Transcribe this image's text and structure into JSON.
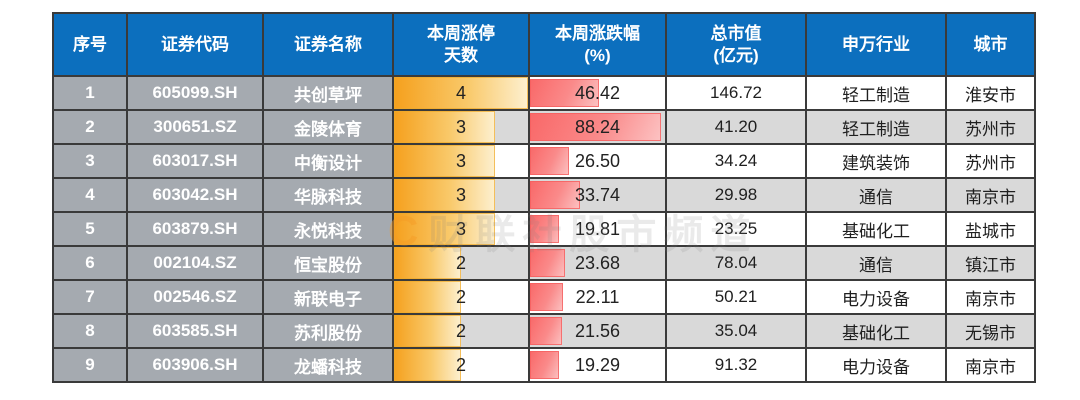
{
  "chart_data": {
    "type": "table",
    "columns": [
      {
        "key": "no",
        "line1": "序号",
        "line2": ""
      },
      {
        "key": "code",
        "line1": "证券代码",
        "line2": ""
      },
      {
        "key": "name",
        "line1": "证券名称",
        "line2": ""
      },
      {
        "key": "limit_days",
        "line1": "本周涨停",
        "line2": "天数"
      },
      {
        "key": "change_pct",
        "line1": "本周涨跌幅",
        "line2": "(%)"
      },
      {
        "key": "market_cap",
        "line1": "总市值",
        "line2": "(亿元)"
      },
      {
        "key": "industry",
        "line1": "申万行业",
        "line2": ""
      },
      {
        "key": "city",
        "line1": "城市",
        "line2": ""
      }
    ],
    "rows": [
      {
        "no": "1",
        "code": "605099.SH",
        "name": "共创草坪",
        "limit_days": 4,
        "change_pct": "46.42",
        "market_cap": "146.72",
        "industry": "轻工制造",
        "city": "淮安市"
      },
      {
        "no": "2",
        "code": "300651.SZ",
        "name": "金陵体育",
        "limit_days": 3,
        "change_pct": "88.24",
        "market_cap": "41.20",
        "industry": "轻工制造",
        "city": "苏州市"
      },
      {
        "no": "3",
        "code": "603017.SH",
        "name": "中衡设计",
        "limit_days": 3,
        "change_pct": "26.50",
        "market_cap": "34.24",
        "industry": "建筑装饰",
        "city": "苏州市"
      },
      {
        "no": "4",
        "code": "603042.SH",
        "name": "华脉科技",
        "limit_days": 3,
        "change_pct": "33.74",
        "market_cap": "29.98",
        "industry": "通信",
        "city": "南京市"
      },
      {
        "no": "5",
        "code": "603879.SH",
        "name": "永悦科技",
        "limit_days": 3,
        "change_pct": "19.81",
        "market_cap": "23.25",
        "industry": "基础化工",
        "city": "盐城市"
      },
      {
        "no": "6",
        "code": "002104.SZ",
        "name": "恒宝股份",
        "limit_days": 2,
        "change_pct": "23.68",
        "market_cap": "78.04",
        "industry": "通信",
        "city": "镇江市"
      },
      {
        "no": "7",
        "code": "002546.SZ",
        "name": "新联电子",
        "limit_days": 2,
        "change_pct": "22.11",
        "market_cap": "50.21",
        "industry": "电力设备",
        "city": "南京市"
      },
      {
        "no": "8",
        "code": "603585.SH",
        "name": "苏利股份",
        "limit_days": 2,
        "change_pct": "21.56",
        "market_cap": "35.04",
        "industry": "基础化工",
        "city": "无锡市"
      },
      {
        "no": "9",
        "code": "603906.SH",
        "name": "龙蟠科技",
        "limit_days": 2,
        "change_pct": "19.29",
        "market_cap": "91.32",
        "industry": "电力设备",
        "city": "南京市"
      }
    ],
    "bar_scales": {
      "limit_days_max": 4,
      "change_pct_max": 88.24,
      "change_bar_max_width_pct": 97
    },
    "layout_hints": {
      "alternating_rows": true,
      "data_bars": [
        "limit_days",
        "change_pct"
      ]
    }
  },
  "watermark": {
    "logo": "C",
    "text": "财联社股市频道"
  },
  "colors": {
    "header_bg": "#0c6fbe",
    "gray_cell_bg": "#a5aab0",
    "row_alt_bg": "#d9d9d9",
    "grid_line": "#3a3a3a",
    "limit_bar_from": "#f5a01d",
    "limit_bar_to": "#fdf0d0",
    "change_bar_from": "#f96868",
    "change_bar_to": "#fcc3c3",
    "watermark_logo_color": "#f59b25"
  }
}
